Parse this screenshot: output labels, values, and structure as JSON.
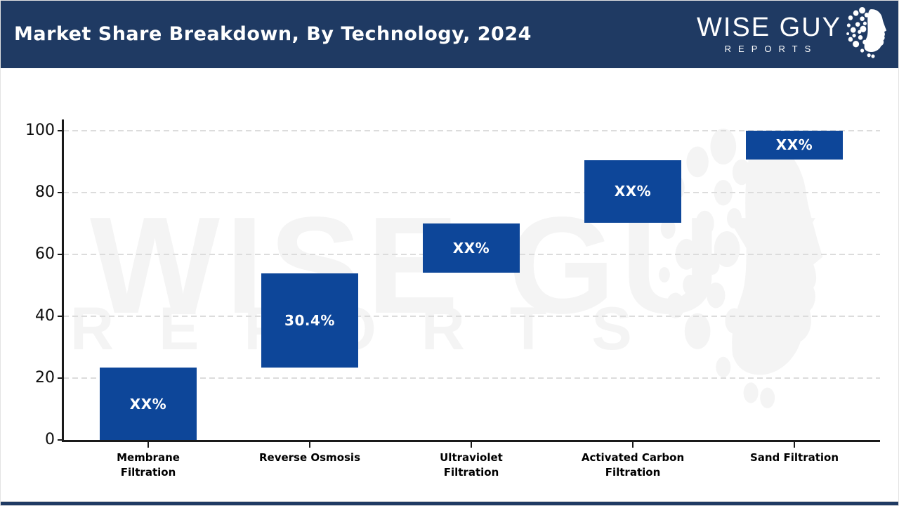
{
  "header": {
    "title": "Market Share Breakdown, By Technology, 2024",
    "logo_line1": "WISE GUY",
    "logo_line2": "REPORTS"
  },
  "watermark": {
    "line1": "WISE GUY",
    "line2": "REPORTS"
  },
  "chart_data": {
    "type": "bar",
    "subtype": "waterfall",
    "title": "Market Share Breakdown, By Technology, 2024",
    "unit": "%",
    "xlabel": "",
    "ylabel": "",
    "ylim": [
      0,
      103.6
    ],
    "yticks": [
      0,
      20,
      40,
      60,
      80,
      100
    ],
    "grid": true,
    "grid_style": "dashed",
    "legend": false,
    "bars": [
      {
        "category": "Membrane Filtration",
        "start": 0,
        "end": 23.4,
        "label": "XX%"
      },
      {
        "category": "Reverse Osmosis",
        "start": 23.4,
        "end": 53.8,
        "label": "30.4%"
      },
      {
        "category": "Ultraviolet Filtration",
        "start": 54.0,
        "end": 70.0,
        "label": "XX%"
      },
      {
        "category": "Activated Carbon Filtration",
        "start": 70.2,
        "end": 90.5,
        "label": "XX%"
      },
      {
        "category": "Sand Filtration",
        "start": 90.7,
        "end": 100,
        "label": "XX%"
      }
    ],
    "category_lines": [
      [
        "Membrane",
        "Filtration"
      ],
      [
        "Reverse Osmosis"
      ],
      [
        "Ultraviolet",
        "Filtration"
      ],
      [
        "Activated Carbon",
        "Filtration"
      ],
      [
        "Sand Filtration"
      ]
    ]
  },
  "colors": {
    "header_bg": "#1f3a63",
    "footer_bg": "#1f3a63",
    "bar": "#0d4699",
    "bar_label": "#ffffff",
    "grid": "#dcdcdc",
    "axis": "#1a1a1a",
    "tick_label": "#0d0d0d",
    "watermark": "#f4f4f4",
    "background": "#ffffff"
  }
}
